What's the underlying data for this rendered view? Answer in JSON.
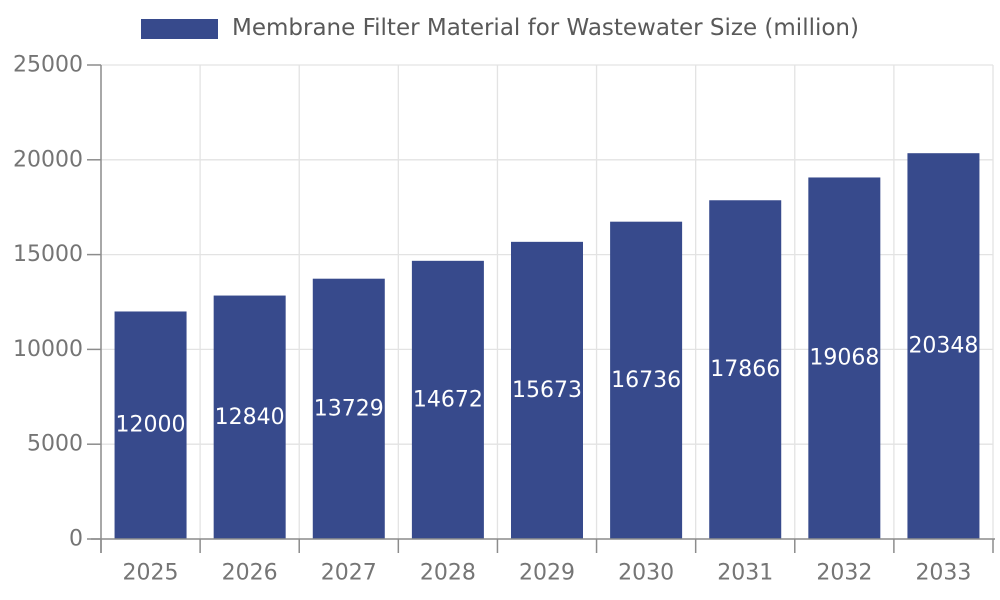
{
  "legend": {
    "label": "Membrane Filter Material for Wastewater Size (million)"
  },
  "colors": {
    "background": "#ffffff",
    "bar": "#374A8C",
    "grid": "#e3e3e3",
    "axis": "#8c8c8c",
    "tick": "#8c8c8c",
    "tick_label": "#757575",
    "title": "#595959",
    "bar_label": "#ffffff"
  },
  "chart_data": {
    "type": "bar",
    "title": "Membrane Filter Material for Wastewater Size (million)",
    "categories": [
      "2025",
      "2026",
      "2027",
      "2028",
      "2029",
      "2030",
      "2031",
      "2032",
      "2033"
    ],
    "values": [
      12000,
      12840,
      13729,
      14672,
      15673,
      16736,
      17866,
      19068,
      20348
    ],
    "series": [
      {
        "name": "Membrane Filter Material for Wastewater Size (million)",
        "values": [
          12000,
          12840,
          13729,
          14672,
          15673,
          16736,
          17866,
          19068,
          20348
        ]
      }
    ],
    "xlabel": "",
    "ylabel": "",
    "ylim": [
      0,
      25000
    ],
    "yticks": [
      0,
      5000,
      10000,
      15000,
      20000,
      25000
    ],
    "grid": true,
    "legend_position": "top",
    "bar_label_position": "inside-center"
  }
}
